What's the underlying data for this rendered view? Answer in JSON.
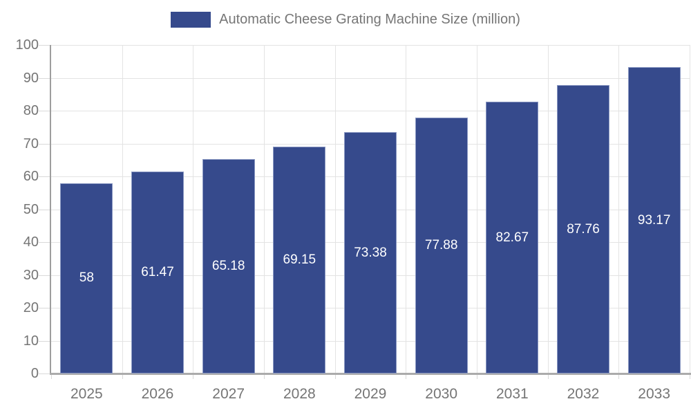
{
  "chart_data": {
    "type": "bar",
    "title": "Automatic Cheese Grating Machine Size (million)",
    "categories": [
      "2025",
      "2026",
      "2027",
      "2028",
      "2029",
      "2030",
      "2031",
      "2032",
      "2033"
    ],
    "values": [
      58,
      61.47,
      65.18,
      69.15,
      73.38,
      77.88,
      82.67,
      87.76,
      93.17
    ],
    "xlabel": "",
    "ylabel": "",
    "ylim": [
      0,
      100
    ],
    "ytick_step": 10,
    "yticks": [
      0,
      10,
      20,
      30,
      40,
      50,
      60,
      70,
      80,
      90,
      100
    ],
    "grid": true,
    "legend_position": "top-center",
    "colors": {
      "bar": "#364a8c",
      "bar_label": "#ffffff",
      "axis_text": "#757575",
      "legend_text": "#767676",
      "grid_line": "#e3e3e3",
      "axis_line": "#9e9e9e",
      "tick_mark": "#d9d9d9",
      "background": "#ffffff"
    }
  }
}
